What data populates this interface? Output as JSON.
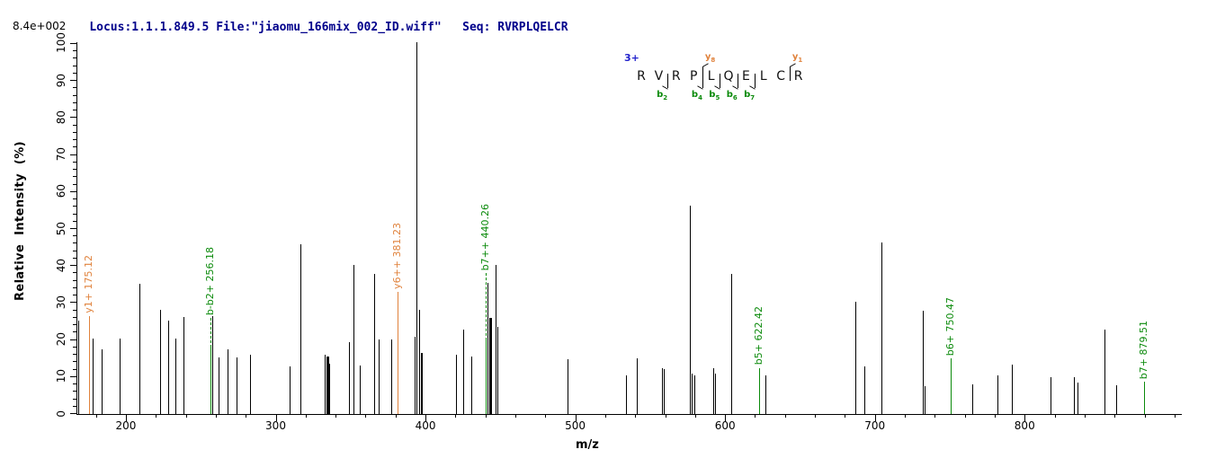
{
  "header": {
    "locus_file": "Locus:1.1.1.849.5 File:\"jiaomu_166mix_002_ID.wiff\"",
    "seq": "Seq: RVRPLQELCR",
    "max_intensity": "8.4e+002",
    "text_color": "#00008B"
  },
  "sequence_annotation": {
    "charge": "3+",
    "charge_color": "#2222CC",
    "residues": [
      "R",
      "V",
      "R",
      "P",
      "L",
      "Q",
      "E",
      "L",
      "C",
      "R"
    ],
    "b_ions": [
      {
        "base": "b",
        "sub": "2",
        "gap": 2
      },
      {
        "base": "b",
        "sub": "4",
        "gap": 4
      },
      {
        "base": "b",
        "sub": "5",
        "gap": 5
      },
      {
        "base": "b",
        "sub": "6",
        "gap": 6
      },
      {
        "base": "b",
        "sub": "7",
        "gap": 7
      }
    ],
    "y_ions": [
      {
        "base": "y",
        "sub": "8",
        "gap": 4
      },
      {
        "base": "y",
        "sub": "1",
        "gap": 9
      }
    ]
  },
  "chart_data": {
    "type": "bar",
    "subtype": "mass-spectrum-stick-plot",
    "title": "",
    "xlabel": "m/z",
    "ylabel": "Relative Intensity (%)",
    "xlim": [
      167,
      904
    ],
    "ylim": [
      0,
      100
    ],
    "x_ticks_labeled": [
      200,
      300,
      400,
      500,
      600,
      700,
      800
    ],
    "x_minor_tick_step": 20,
    "y_ticks_labeled": [
      0,
      10,
      20,
      30,
      40,
      50,
      60,
      70,
      80,
      90,
      100
    ],
    "y_minor_tick_step": 2,
    "grid": false,
    "peak_color": "#000000",
    "b_ion_color": "#0B8A0B",
    "y_ion_color": "#E0823C",
    "peaks_format": [
      "mz",
      "intensity_pct",
      "optional_width_px"
    ],
    "peaks": [
      [
        168,
        25.3
      ],
      [
        178,
        20.3
      ],
      [
        184,
        17.6
      ],
      [
        196,
        20.3
      ],
      [
        209,
        35.2
      ],
      [
        222.6,
        28.2
      ],
      [
        228,
        25.3
      ],
      [
        233,
        20.5
      ],
      [
        238.6,
        26.1
      ],
      [
        257.5,
        26.5
      ],
      [
        262,
        15.2
      ],
      [
        267.6,
        17.6
      ],
      [
        274,
        15.2
      ],
      [
        283,
        16.0
      ],
      [
        309,
        12.8
      ],
      [
        316.7,
        45.8
      ],
      [
        333,
        16.0
      ],
      [
        334,
        15.5,
        3
      ],
      [
        335.5,
        13.6
      ],
      [
        348.7,
        19.3
      ],
      [
        352,
        40.3
      ],
      [
        356,
        13.0
      ],
      [
        365.7,
        37.9
      ],
      [
        369,
        20.2
      ],
      [
        377,
        20.2
      ],
      [
        392.6,
        20.9
      ],
      [
        394.1,
        100.5
      ],
      [
        395.9,
        28.2
      ],
      [
        396.8,
        16.4,
        2
      ],
      [
        420.2,
        16.0
      ],
      [
        425.2,
        22.7
      ],
      [
        430.6,
        15.5
      ],
      [
        441.2,
        35.4
      ],
      [
        442.3,
        26.0,
        3
      ],
      [
        446.6,
        40.3
      ],
      [
        448.2,
        23.5
      ],
      [
        494.9,
        14.8
      ],
      [
        533.9,
        10.4
      ],
      [
        540.9,
        15.0
      ],
      [
        557.9,
        12.5
      ],
      [
        559.1,
        12.2
      ],
      [
        576.3,
        56.2
      ],
      [
        577.7,
        11.0
      ],
      [
        579.3,
        10.4
      ],
      [
        591.9,
        12.5
      ],
      [
        593.3,
        11.0
      ],
      [
        604.3,
        37.9
      ],
      [
        626.9,
        10.4
      ],
      [
        687,
        30.3
      ],
      [
        693,
        12.9
      ],
      [
        704.4,
        46.4
      ],
      [
        732,
        28.0
      ],
      [
        733.4,
        7.5
      ],
      [
        765,
        7.9
      ],
      [
        782,
        10.4
      ],
      [
        791.4,
        13.4
      ],
      [
        817.4,
        10.0
      ],
      [
        833,
        10.0
      ],
      [
        835,
        8.5
      ],
      [
        853.4,
        22.7
      ],
      [
        861,
        7.8
      ]
    ],
    "annotated_peaks": [
      {
        "label": "y1+ 175.12",
        "mz": 175.12,
        "intensity": 26.5,
        "ion": "y"
      },
      {
        "label": "b-b2+ 256.18",
        "mz": 256.18,
        "intensity": 18.0,
        "dash_to": 26.0,
        "ion": "b"
      },
      {
        "label": "y6++ 381.23",
        "mz": 381.23,
        "intensity": 33.0,
        "ion": "y"
      },
      {
        "label": "b7++ 440.26",
        "mz": 440.26,
        "intensity": 20.0,
        "dash_to": 38.0,
        "ion": "b"
      },
      {
        "label": "b5+ 622.42",
        "mz": 622.42,
        "intensity": 12.5,
        "ion": "b"
      },
      {
        "label": "b6+ 750.47",
        "mz": 750.47,
        "intensity": 15.0,
        "ion": "b"
      },
      {
        "label": "b7+ 879.51",
        "mz": 879.51,
        "intensity": 8.7,
        "ion": "b"
      }
    ]
  }
}
